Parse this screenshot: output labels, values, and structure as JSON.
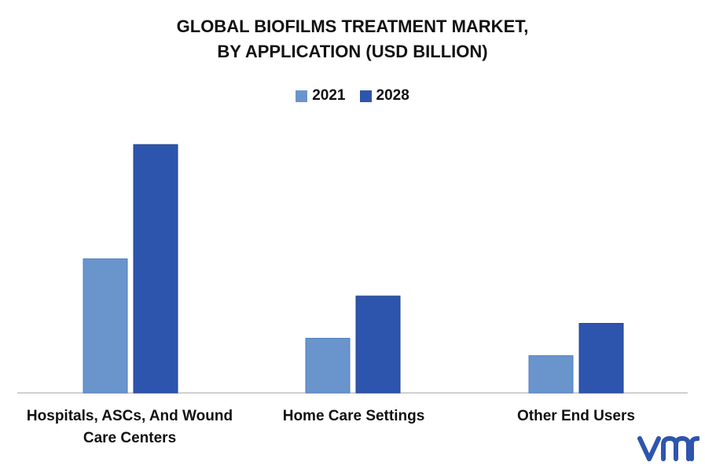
{
  "title_line1": "GLOBAL BIOFILMS TREATMENT MARKET,",
  "title_line2": "BY APPLICATION (USD BILLION)",
  "chart_data": {
    "type": "bar",
    "categories": [
      "Hospitals, ASCs, And Wound Care Centers",
      "Home Care Settings",
      "Other End Users"
    ],
    "series": [
      {
        "name": "2021",
        "color": "#6a95cc",
        "values": [
          0.54,
          0.22,
          0.15
        ]
      },
      {
        "name": "2028",
        "color": "#2e55ad",
        "values": [
          1.0,
          0.39,
          0.28
        ]
      }
    ],
    "ylim": [
      0,
      1.1
    ],
    "grid": false,
    "legend": "top-center"
  },
  "logo": {
    "icon": "vmr-logo-icon",
    "color": "#2e55ad"
  }
}
